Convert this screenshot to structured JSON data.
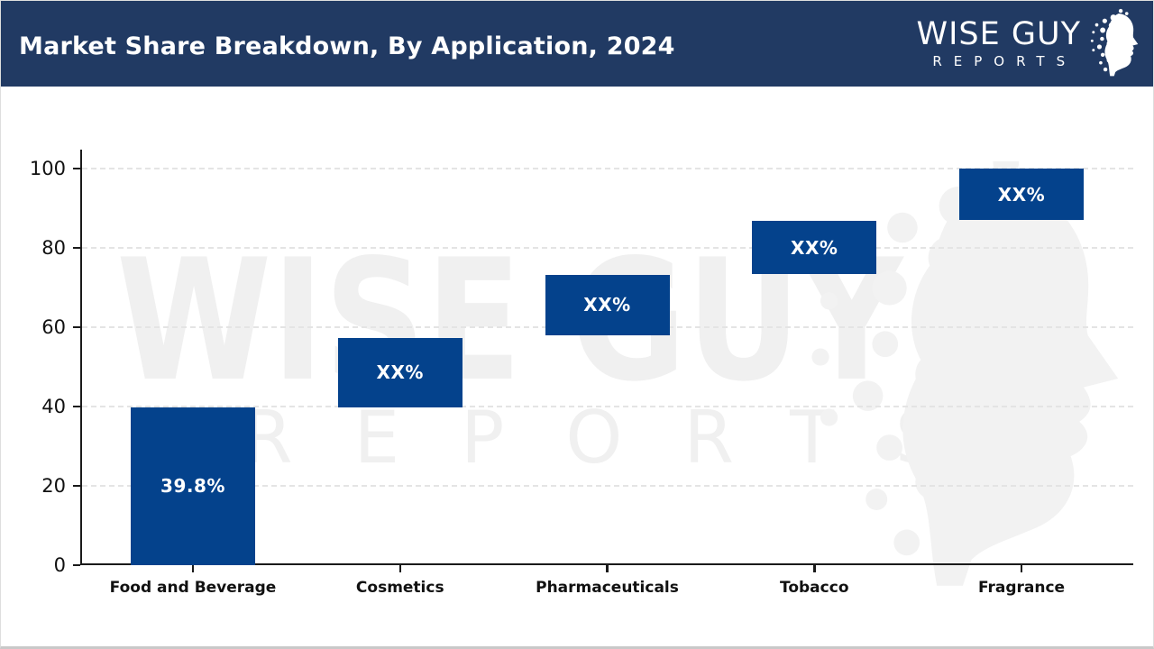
{
  "header": {
    "title": "Market Share Breakdown, By Application, 2024",
    "logo": {
      "wordmark": "WISE GUY",
      "subtitle": "REPORTS"
    }
  },
  "watermark": {
    "wordmark": "WISE GUY",
    "subtitle": "REPORTS"
  },
  "colors": {
    "header_bg": "#213A63",
    "bar": "#04428C",
    "bar_label": "#FFFFFF",
    "grid": "#E4E4E4",
    "axis": "#1A1A1A",
    "watermark": "#F0F0F0"
  },
  "chart_data": {
    "type": "bar",
    "subtype": "waterfall",
    "title": "Market Share Breakdown, By Application, 2024",
    "unit": "percent market share",
    "categories": [
      "Food and Beverage",
      "Cosmetics",
      "Pharmaceuticals",
      "Tobacco",
      "Fragrance"
    ],
    "segments": [
      {
        "category": "Food and Beverage",
        "start": 0,
        "end": 39.8,
        "label": "39.8%"
      },
      {
        "category": "Cosmetics",
        "start": 39.8,
        "end": 57.3,
        "label": "XX%"
      },
      {
        "category": "Pharmaceuticals",
        "start": 58.0,
        "end": 73.2,
        "label": "XX%"
      },
      {
        "category": "Tobacco",
        "start": 73.4,
        "end": 86.8,
        "label": "XX%"
      },
      {
        "category": "Fragrance",
        "start": 87.0,
        "end": 100,
        "label": "XX%"
      }
    ],
    "yticks": [
      0,
      20,
      40,
      60,
      80,
      100
    ],
    "ylim": [
      0,
      104.8
    ],
    "xlabel": "",
    "ylabel": "",
    "grid": "horizontal-dashed",
    "legend": "none",
    "bar_label_position": "center"
  }
}
